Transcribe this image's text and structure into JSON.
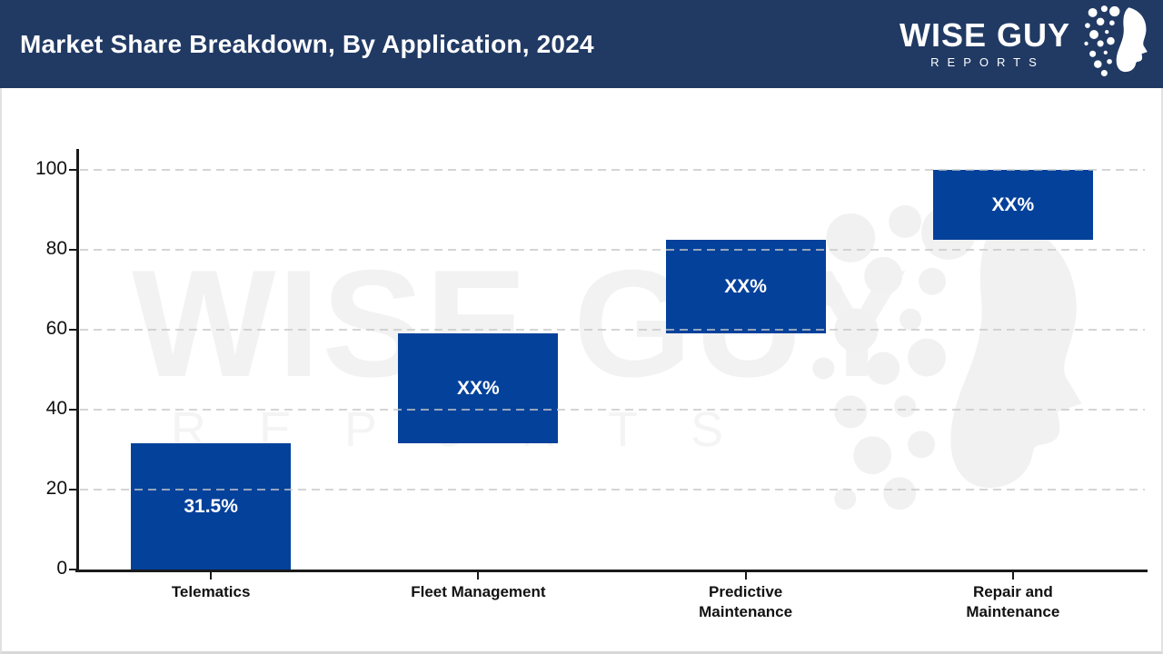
{
  "header": {
    "title": "Market Share Breakdown, By Application, 2024",
    "bg_color": "#213a64",
    "logo": {
      "line1": "WISE GUY",
      "line2": "REPORTS"
    }
  },
  "watermark": {
    "line1": "WISE GUY",
    "line2": "REPORTS"
  },
  "chart_data": {
    "type": "bar",
    "subtype": "floating-waterfall",
    "title": "Market Share Breakdown, By Application, 2024",
    "categories": [
      "Telematics",
      "Fleet Management",
      "Predictive Maintenance",
      "Repair and Maintenance"
    ],
    "segments": [
      {
        "category": "Telematics",
        "start": 0,
        "end": 31.5,
        "label": "31.5%"
      },
      {
        "category": "Fleet Management",
        "start": 31.5,
        "end": 59,
        "label": "XX%"
      },
      {
        "category": "Predictive Maintenance",
        "start": 59,
        "end": 82.5,
        "label": "XX%"
      },
      {
        "category": "Repair and Maintenance",
        "start": 82.5,
        "end": 100,
        "label": "XX%"
      }
    ],
    "yticks": [
      0,
      20,
      40,
      60,
      80,
      100
    ],
    "ylim": [
      0,
      105
    ],
    "xlabel": "",
    "ylabel": "",
    "legend": "none",
    "grid": "horizontal-dashed",
    "bar_color": "#04419b",
    "bar_label_color": "#ffffff",
    "axis_color": "#1a1a1a"
  }
}
